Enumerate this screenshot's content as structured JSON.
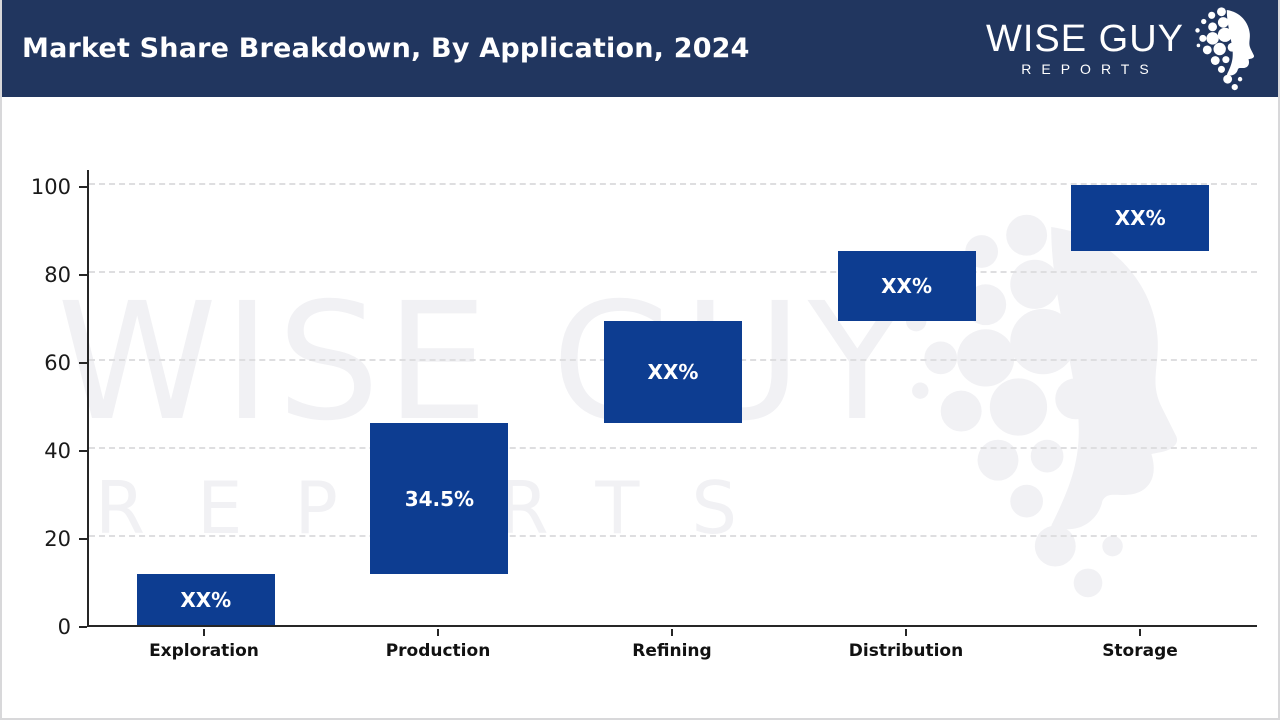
{
  "header": {
    "title": "Market Share Breakdown, By Application, 2024",
    "brand": {
      "line1": "WISE GUY",
      "line2": "REPORTS"
    }
  },
  "watermark": {
    "line1": "WISE GUY",
    "line2": "REPORTS"
  },
  "colors": {
    "header_background": "#21365f",
    "bar": "#0d3d91",
    "bar_label": "#ffffff",
    "gridline": "#dedee0",
    "watermark": "#f1f1f4",
    "axis": "#262626"
  },
  "chart_data": {
    "type": "bar",
    "subtype": "waterfall",
    "title": "Market Share Breakdown, By Application, 2024",
    "xlabel": "",
    "ylabel": "",
    "ylim": [
      0,
      100
    ],
    "yticks": [
      0,
      20,
      40,
      60,
      80,
      100
    ],
    "grid": "horizontal-dashed",
    "legend": "none",
    "categories": [
      "Exploration",
      "Production",
      "Refining",
      "Distribution",
      "Storage"
    ],
    "bar_color": "#0d3d91",
    "label_color": "#ffffff",
    "series": [
      {
        "name": "Market Share",
        "segments": [
          {
            "category": "Exploration",
            "start": 0,
            "end": 11.5,
            "label": "XX%"
          },
          {
            "category": "Production",
            "start": 11.5,
            "end": 46,
            "label": "34.5%"
          },
          {
            "category": "Refining",
            "start": 46,
            "end": 69,
            "label": "XX%"
          },
          {
            "category": "Distribution",
            "start": 69,
            "end": 85,
            "label": "XX%"
          },
          {
            "category": "Storage",
            "start": 85,
            "end": 100,
            "label": "XX%"
          }
        ]
      }
    ]
  }
}
